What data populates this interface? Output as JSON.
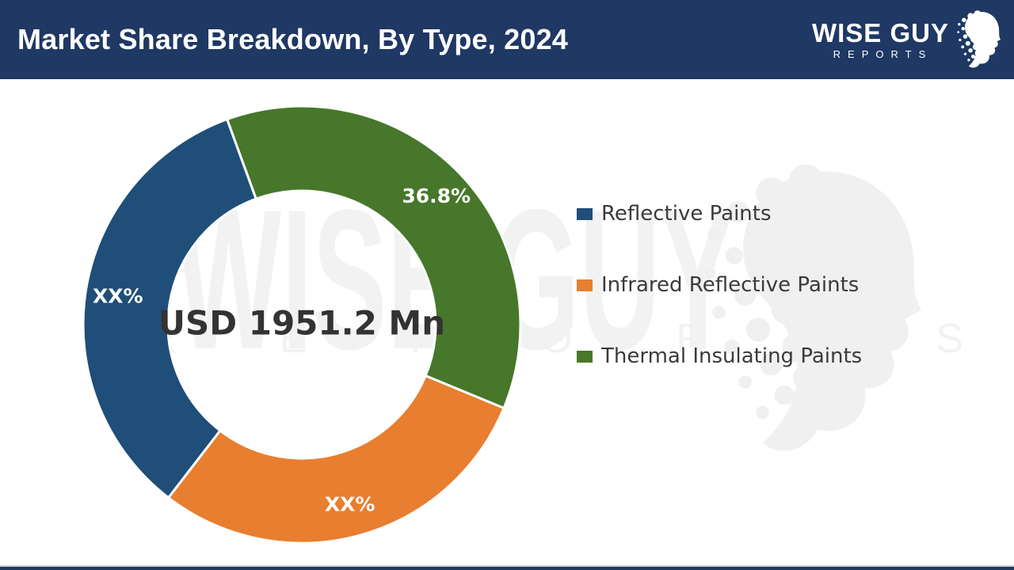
{
  "header": {
    "title": "Market Share Breakdown, By Type, 2024",
    "logo": {
      "name": "WISE GUY",
      "subtitle": "REPORTS"
    }
  },
  "watermark": {
    "line1": "WISE GUY",
    "line2": "R E P O R T S"
  },
  "chart_data": {
    "type": "pie",
    "subtype": "donut",
    "title": "Market Share Breakdown, By Type, 2024",
    "center_label": "USD 1951.2 Mn",
    "start_angle_deg_clockwise_from_top": -20,
    "legend_position": "right",
    "segments": [
      {
        "name": "Thermal Insulating Paints",
        "label": "36.8%",
        "value_pct": 36.8,
        "color": "#47772B"
      },
      {
        "name": "Infrared Reflective Paints",
        "label": "XX%",
        "value_pct": 29.2,
        "color": "#E87E2F"
      },
      {
        "name": "Reflective Paints",
        "label": "XX%",
        "value_pct": 34.0,
        "color": "#1F4E79"
      }
    ]
  },
  "legend": {
    "items": [
      {
        "label": "Reflective Paints",
        "color": "#1F4E79"
      },
      {
        "label": "Infrared Reflective Paints",
        "color": "#E87E2F"
      },
      {
        "label": "Thermal Insulating Paints",
        "color": "#47772B"
      }
    ]
  },
  "colors": {
    "header_bar": "#1F3864",
    "footer_bar": "#1F3864",
    "center_text": "#333333",
    "legend_text": "#3A3A3A",
    "slice_label_text": "#FFFFFF",
    "watermark": "#F2F2F2"
  }
}
